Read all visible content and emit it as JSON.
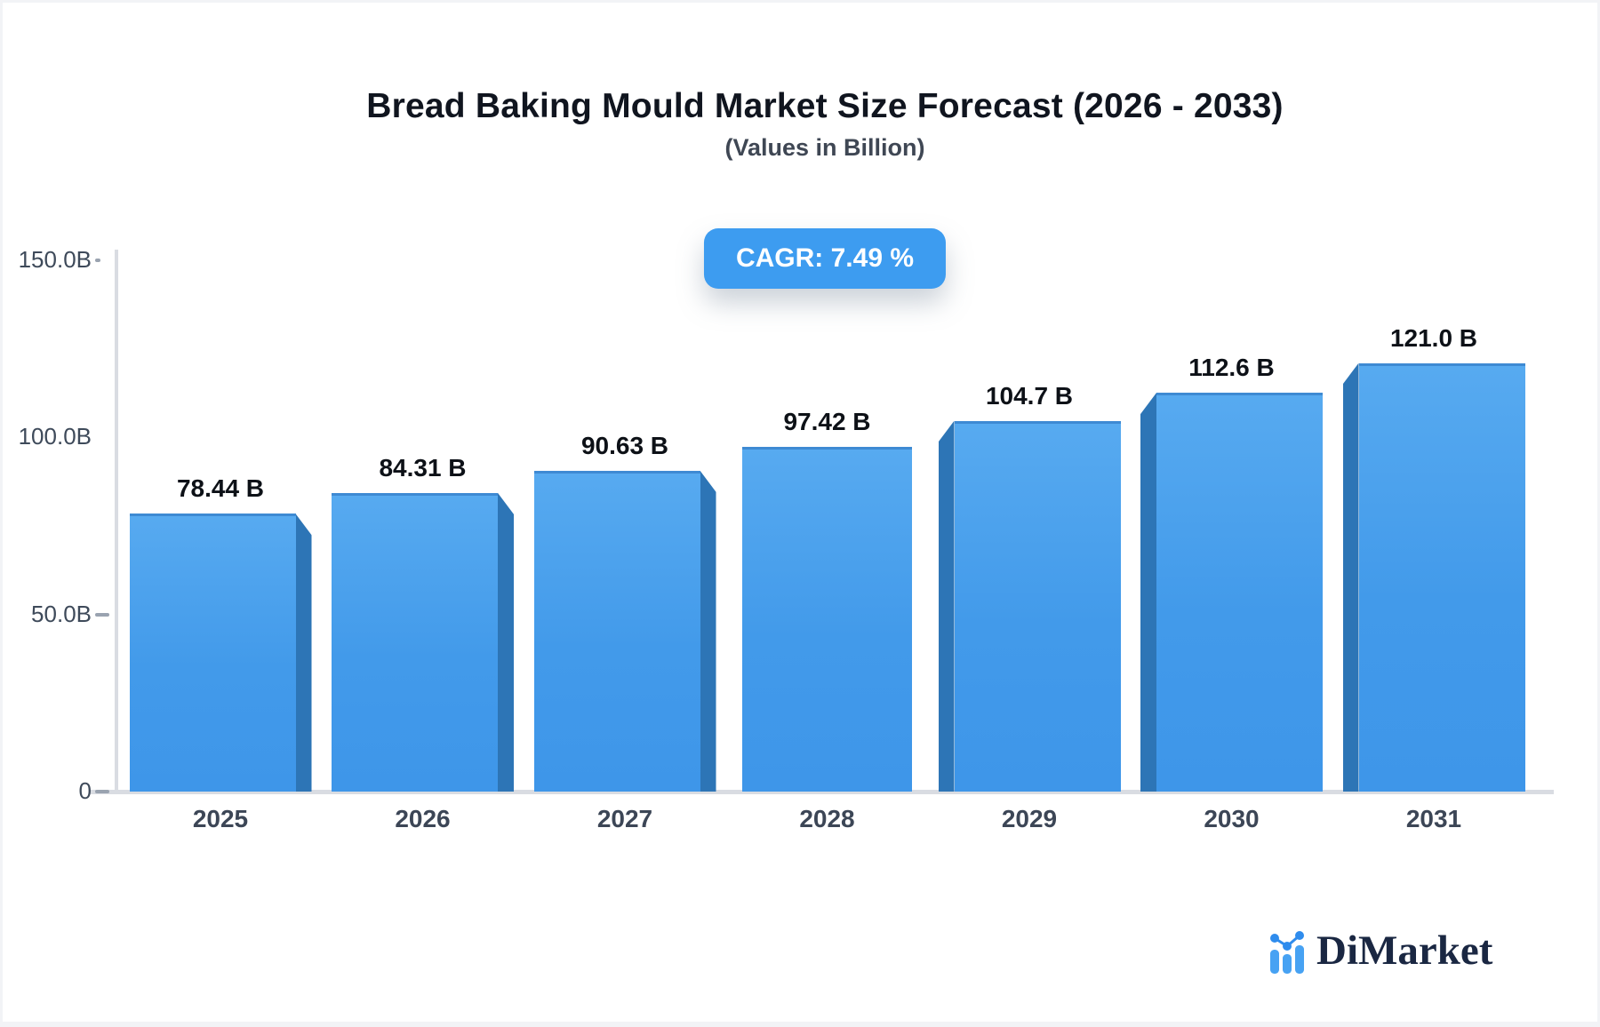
{
  "header": {
    "title": "Bread Baking Mould Market Size Forecast (2026 - 2033)",
    "subtitle": "(Values in Billion)",
    "cagr_label": "CAGR: 7.49 %"
  },
  "brand": {
    "name": "DiMarket"
  },
  "colors": {
    "bar_face_top": "#57aaf0",
    "bar_face_bottom": "#3e96e9",
    "bar_side": "#2d75b6",
    "badge_background": "#3d9cf0",
    "axis_line": "#d9dce2",
    "tick_text": "#3e4a5a",
    "title_text": "#10151f",
    "logo_navy": "#1a2742",
    "logo_blue": "#3f9df2"
  },
  "chart_data": {
    "type": "bar",
    "title": "Bread Baking Mould Market Size Forecast (2026 - 2033)",
    "subtitle": "(Values in Billion)",
    "annotation": "CAGR: 7.49 %",
    "categories": [
      "2025",
      "2026",
      "2027",
      "2028",
      "2029",
      "2030",
      "2031"
    ],
    "values": [
      78.44,
      84.31,
      90.63,
      97.42,
      104.7,
      112.6,
      121.0
    ],
    "value_labels": [
      "78.44 B",
      "84.31 B",
      "90.63 B",
      "97.42 B",
      "104.7 B",
      "112.6 B",
      "121.0 B"
    ],
    "ylabel": "",
    "xlabel": "",
    "ylim": [
      0,
      150
    ],
    "grid": false,
    "legend": false,
    "y_ticks": [
      {
        "label": "150.0B",
        "value": 150,
        "dash_width": 6
      },
      {
        "label": "100.0B",
        "value": 100,
        "dash_width": 0
      },
      {
        "label": "50.0B",
        "value": 50,
        "dash_width": 16
      },
      {
        "label": "0",
        "value": 0,
        "dash_width": 16
      }
    ]
  }
}
